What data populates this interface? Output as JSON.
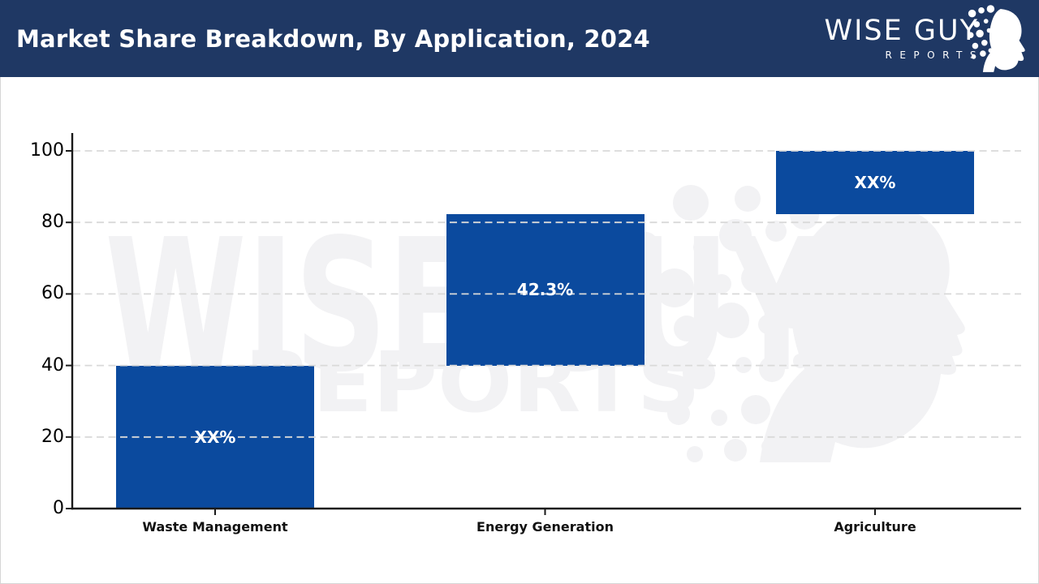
{
  "header": {
    "title": "Market Share Breakdown, By Application, 2024",
    "logo": {
      "line1": "WISE GUY",
      "line2": "REPORTS"
    }
  },
  "watermark": {
    "line1": "WISE GUY",
    "line2": "REPORTS"
  },
  "chart_data": {
    "type": "bar",
    "variant": "floating-waterfall",
    "title": "Market Share Breakdown, By Application, 2024",
    "categories": [
      "Waste Management",
      "Energy Generation",
      "Agriculture"
    ],
    "bars": [
      {
        "category": "Waste Management",
        "start": 0,
        "end": 40,
        "label": "XX%"
      },
      {
        "category": "Energy Generation",
        "start": 40,
        "end": 82.3,
        "label": "42.3%"
      },
      {
        "category": "Agriculture",
        "start": 82.3,
        "end": 100,
        "label": "XX%"
      }
    ],
    "xlabel": "",
    "ylabel": "",
    "ylim": [
      0,
      100
    ],
    "yticks": [
      0,
      20,
      40,
      60,
      80,
      100
    ],
    "grid": "horizontal-dashed",
    "legend": "none",
    "bar_color": "#0b4a9e"
  },
  "colors": {
    "header_bg": "#1f3864",
    "bar_fill": "#0b4a9e",
    "grid_line": "#d9d9d9",
    "axis_line": "#1a1a1a",
    "tick_label": "#000000",
    "bar_label_text": "#ffffff",
    "watermark": "#f2f2f4",
    "page_border": "#d5d5d5"
  }
}
